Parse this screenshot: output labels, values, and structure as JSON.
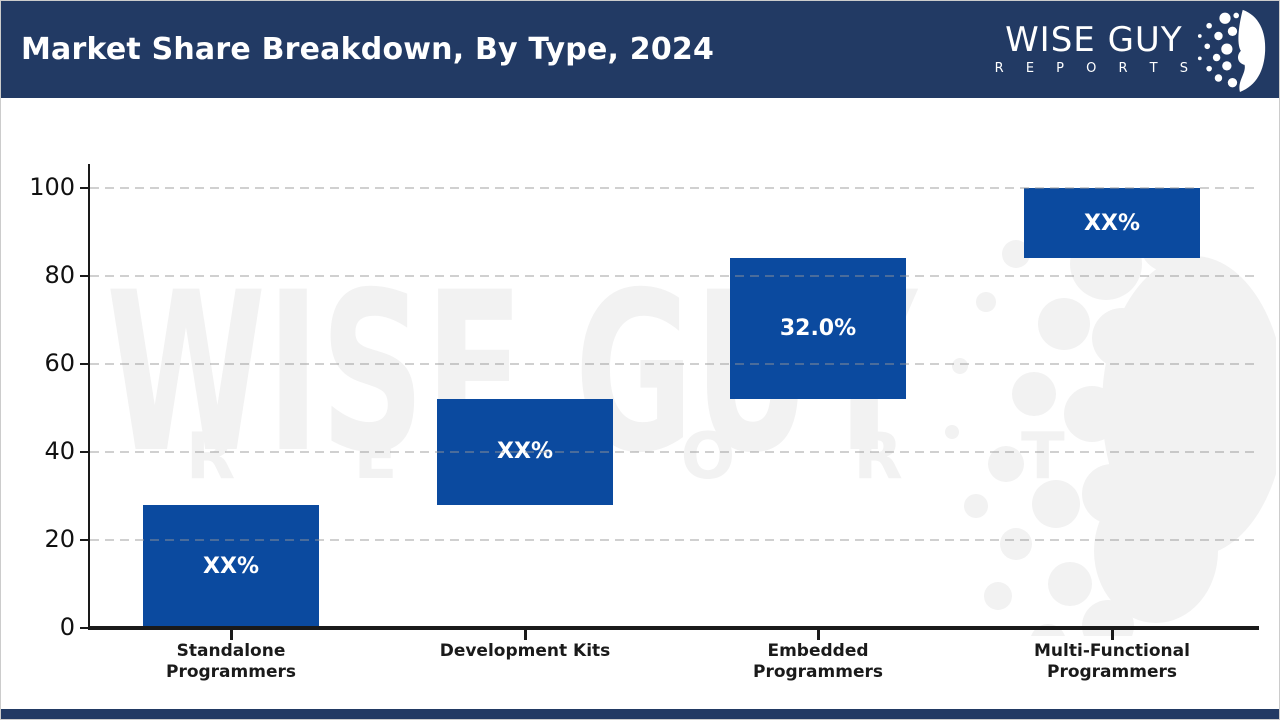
{
  "header": {
    "title": "Market Share Breakdown, By Type, 2024",
    "logo": {
      "line1": "WISE GUY",
      "line2": "R E P O R T S"
    }
  },
  "watermark": {
    "line1": "WISE GUY",
    "line2": "R E P O R T S"
  },
  "colors": {
    "header_bg": "#223a64",
    "footer_bg": "#223a64",
    "bar_fill": "#0b4a9f",
    "axis": "#1a1a1a",
    "grid": "#d9d9d9",
    "bar_label_text": "#ffffff",
    "watermark": "#f2f2f2"
  },
  "chart_data": {
    "type": "bar",
    "variant": "waterfall",
    "title": "Market Share Breakdown, By Type, 2024",
    "xlabel": "",
    "ylabel": "",
    "ylim": [
      0,
      105
    ],
    "yticks": [
      0,
      20,
      40,
      60,
      80,
      100
    ],
    "grid": "horizontal-dashed",
    "legend": "none",
    "categories": [
      "Standalone Programmers",
      "Development Kits",
      "Embedded Programmers",
      "Multi-Functional Programmers"
    ],
    "category_lines": [
      [
        "Standalone",
        "Programmers"
      ],
      [
        "Development Kits"
      ],
      [
        "Embedded",
        "Programmers"
      ],
      [
        "Multi-Functional",
        "Programmers"
      ]
    ],
    "segments": [
      {
        "category": "Standalone Programmers",
        "start": 0,
        "end": 28,
        "value_label": "XX%"
      },
      {
        "category": "Development Kits",
        "start": 28,
        "end": 52,
        "value_label": "XX%"
      },
      {
        "category": "Embedded Programmers",
        "start": 52,
        "end": 84,
        "value_label": "32.0%"
      },
      {
        "category": "Multi-Functional Programmers",
        "start": 84,
        "end": 100,
        "value_label": "XX%"
      }
    ]
  }
}
